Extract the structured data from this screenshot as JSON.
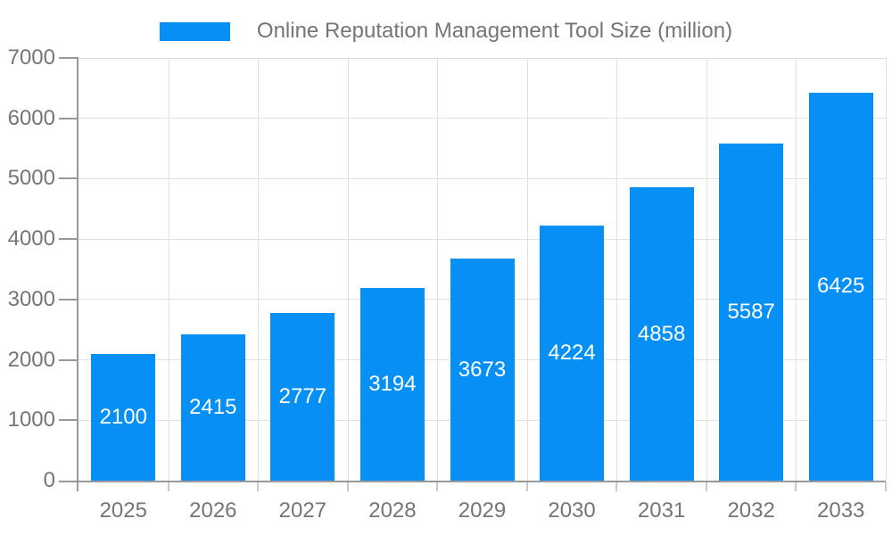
{
  "legend": {
    "label": "Online Reputation Management Tool Size (million)"
  },
  "chart_data": {
    "type": "bar",
    "title": "Online Reputation Management Tool Size (million)",
    "categories": [
      "2025",
      "2026",
      "2027",
      "2028",
      "2029",
      "2030",
      "2031",
      "2032",
      "2033"
    ],
    "values": [
      2100,
      2415,
      2777,
      3194,
      3673,
      4224,
      4858,
      5587,
      6425
    ],
    "xlabel": "",
    "ylabel": "",
    "ylim": [
      0,
      7000
    ],
    "yticks": [
      0,
      1000,
      2000,
      3000,
      4000,
      5000,
      6000,
      7000
    ],
    "grid": true,
    "legend_position": "top-center",
    "bar_label_position": "inside-center",
    "colors": {
      "bar": "#0690F6",
      "bar_label": "#FFFFFF",
      "axis_label": "#757575",
      "legend_text": "#757575",
      "gridline": "#E0E0E0",
      "axis_line": "#999999",
      "boundary_tick": "#C9C9C9",
      "background": "#FFFFFF"
    }
  }
}
